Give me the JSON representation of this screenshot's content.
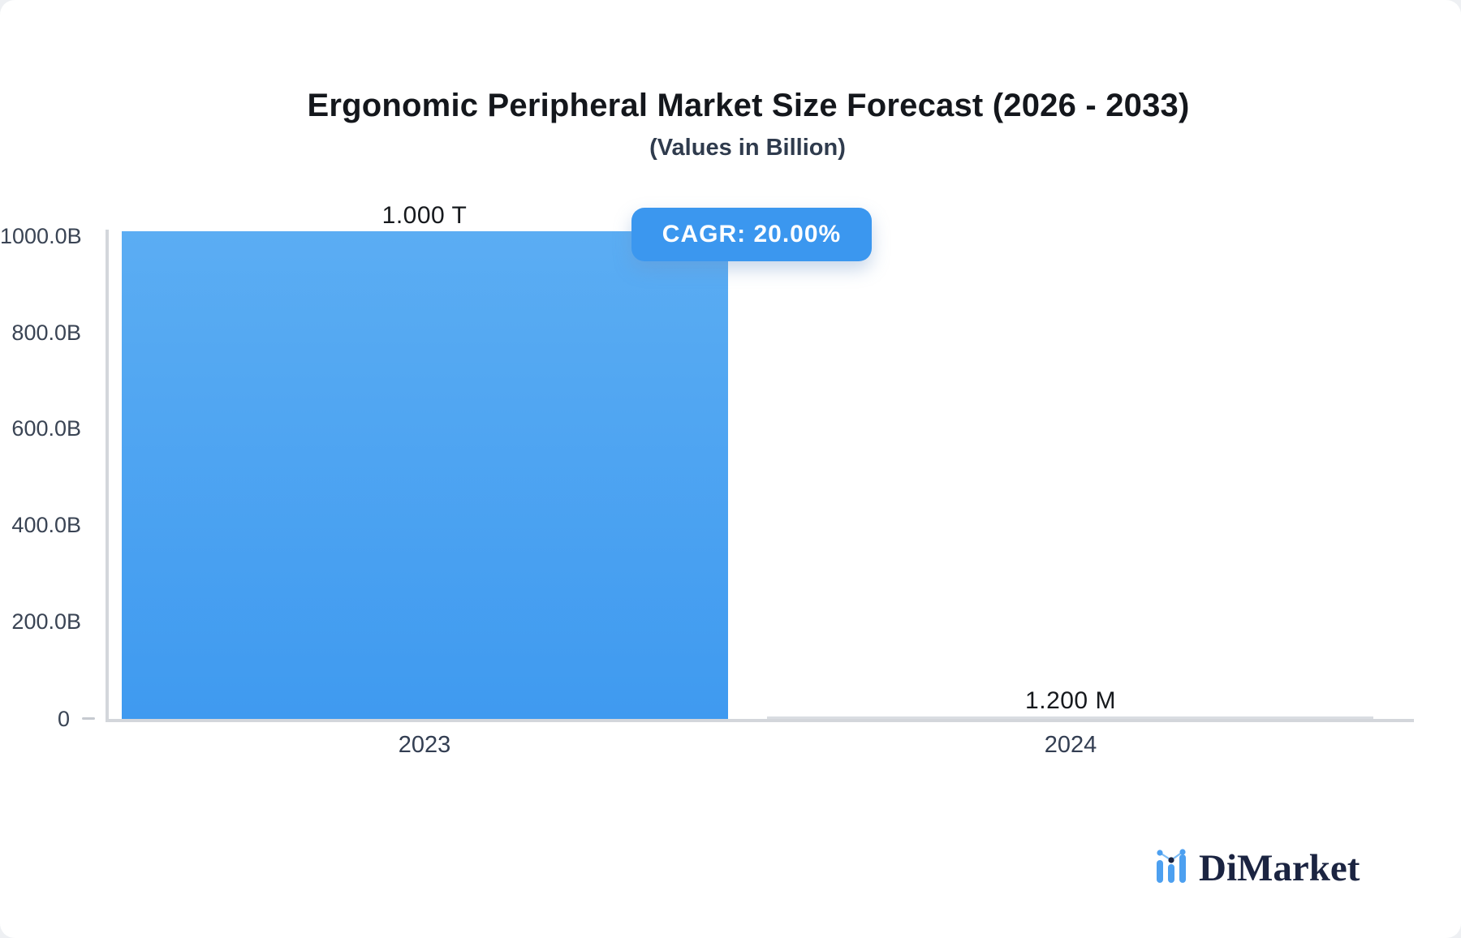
{
  "page": {
    "title": "Ergonomic Peripheral Market Size Forecast (2026 - 2033)",
    "subtitle": "(Values in Billion)"
  },
  "cagr_badge": {
    "label": "CAGR: 20.00%"
  },
  "chart_data": {
    "type": "bar",
    "title": "Ergonomic Peripheral Market Size Forecast (2026 - 2033)",
    "subtitle": "(Values in Billion)",
    "unit": "Billion",
    "categories": [
      "2023",
      "2024"
    ],
    "values": [
      1000,
      0.0012
    ],
    "value_labels": [
      "1.000 T",
      "1.200 M"
    ],
    "cagr_percent": "20.00%",
    "ylim": [
      0,
      1000
    ],
    "yticks": [
      "1000.0B",
      "800.0B",
      "600.0B",
      "400.0B",
      "200.0B",
      "0"
    ],
    "grid": false,
    "legend": false,
    "bar_colors": [
      "#4ba3f0",
      "#d9dde2"
    ]
  },
  "watermark": {
    "brand": "DiMarket",
    "icon": "mini-bar-chart-logo-icon"
  },
  "colors": {
    "title_text": "#14171c",
    "subtitle_text": "#2f3b4d",
    "tick_text": "#3a4454",
    "xlabel_text": "#333e52",
    "value_text": "#16191d",
    "axis_line": "#d3d6db",
    "bar_top": "#5badf3",
    "bar_bottom": "#3f9af0",
    "bar_flat": "#d9dde2",
    "badge_bg": "#3b97ef",
    "logo_navy": "#1b2441",
    "logo_blue": "#4da0f0"
  }
}
